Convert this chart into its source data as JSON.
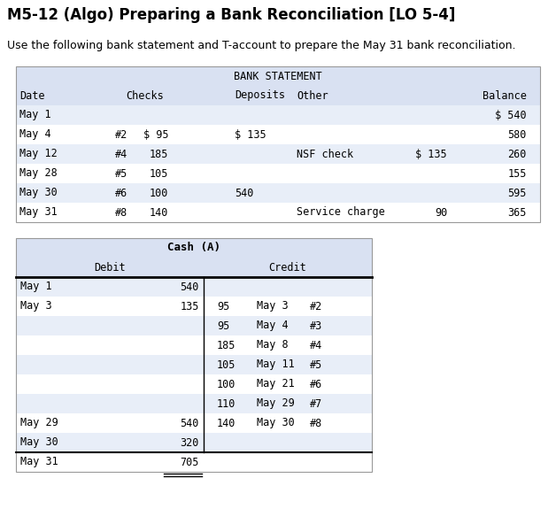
{
  "title": "M5-12 (Algo) Preparing a Bank Reconciliation [LO 5-4]",
  "subtitle": "Use the following bank statement and T-account to prepare the May 31 bank reconciliation.",
  "bank_statement_header": "BANK STATEMENT",
  "bs_col_labels": [
    "Date",
    "Checks",
    "Deposits",
    "Other",
    "Balance"
  ],
  "bs_rows": [
    [
      "May 1",
      "",
      "",
      "",
      "",
      "",
      "$ 540"
    ],
    [
      "May 4",
      "#2",
      "$ 95",
      "$ 135",
      "",
      "",
      "580"
    ],
    [
      "May 12",
      "#4",
      "185",
      "",
      "NSF check",
      "$ 135",
      "260"
    ],
    [
      "May 28",
      "#5",
      "105",
      "",
      "",
      "",
      "155"
    ],
    [
      "May 30",
      "#6",
      "100",
      "540",
      "",
      "",
      "595"
    ],
    [
      "May 31",
      "#8",
      "140",
      "",
      "Service charge",
      "90",
      "365"
    ]
  ],
  "ta_left_rows": [
    [
      "May 1",
      "540"
    ],
    [
      "May 3",
      "135"
    ],
    [
      "",
      ""
    ],
    [
      "",
      ""
    ],
    [
      "",
      ""
    ],
    [
      "",
      ""
    ],
    [
      "",
      ""
    ],
    [
      "May 29",
      "540"
    ],
    [
      "May 30",
      "320"
    ]
  ],
  "ta_right_rows": [
    [
      "",
      "",
      ""
    ],
    [
      "95",
      "May 3",
      "#2"
    ],
    [
      "95",
      "May 4",
      "#3"
    ],
    [
      "185",
      "May 8",
      "#4"
    ],
    [
      "105",
      "May 11",
      "#5"
    ],
    [
      "100",
      "May 21",
      "#6"
    ],
    [
      "110",
      "May 29",
      "#7"
    ],
    [
      "140",
      "May 30",
      "#8"
    ],
    [
      "",
      "",
      ""
    ]
  ],
  "ta_footer": [
    "May 31",
    "705"
  ],
  "header_bg": "#d9e1f2",
  "row_bg_even": "#e8eef8",
  "row_bg_odd": "#ffffff",
  "font_family": "monospace",
  "title_fontsize": 12,
  "subtitle_fontsize": 9,
  "table_fontsize": 8.5,
  "bg_color": "#ffffff"
}
